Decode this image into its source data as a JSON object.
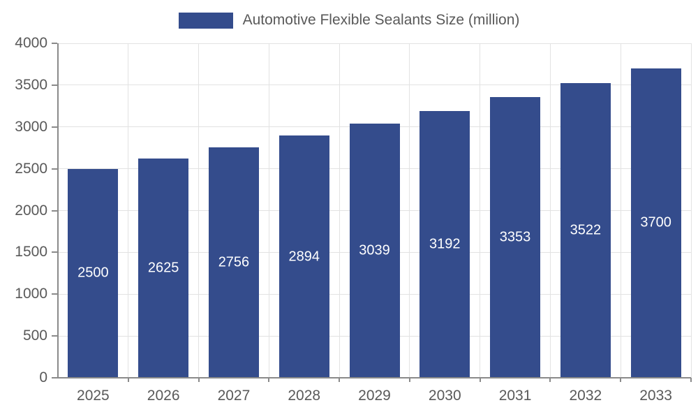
{
  "legend": {
    "label": "Automotive Flexible Sealants Size (million)"
  },
  "chart_data": {
    "type": "bar",
    "title": "Automotive Flexible Sealants Size (million)",
    "categories": [
      "2025",
      "2026",
      "2027",
      "2028",
      "2029",
      "2030",
      "2031",
      "2032",
      "2033"
    ],
    "values": [
      2500,
      2625,
      2756,
      2894,
      3039,
      3192,
      3353,
      3522,
      3700
    ],
    "xlabel": "",
    "ylabel": "",
    "ylim": [
      0,
      4000
    ],
    "ytick_step": 500,
    "ytick_labels": [
      "0",
      "500",
      "1000",
      "1500",
      "2000",
      "2500",
      "3000",
      "3500",
      "4000"
    ],
    "grid": true,
    "legend_position": "top",
    "value_labels": "inside-center",
    "colors": {
      "bar": "#344C8C",
      "value_label": "#FFFFFF",
      "axis_label": "#595959",
      "gridline": "#E2E2E2",
      "axis_line": "#8A8A8A"
    }
  }
}
